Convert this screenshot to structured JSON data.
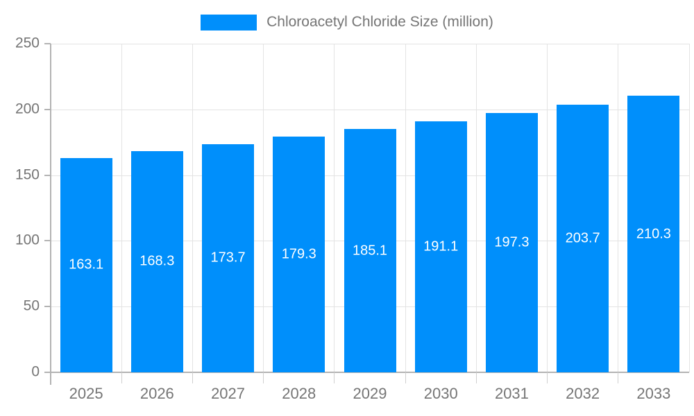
{
  "chart_data": {
    "type": "bar",
    "title": "Chloroacetyl Chloride Size (million)",
    "legend": {
      "label": "Chloroacetyl Chloride Size (million)",
      "position": "top"
    },
    "categories": [
      "2025",
      "2026",
      "2027",
      "2028",
      "2029",
      "2030",
      "2031",
      "2032",
      "2033"
    ],
    "values": [
      163.1,
      168.3,
      173.7,
      179.3,
      185.1,
      191.1,
      197.3,
      203.7,
      210.3
    ],
    "value_labels": [
      "163.1",
      "168.3",
      "173.7",
      "179.3",
      "185.1",
      "191.1",
      "197.3",
      "203.7",
      "210.3"
    ],
    "xlabel": "",
    "ylabel": "",
    "ylim": [
      0,
      250
    ],
    "yticks": [
      0,
      50,
      100,
      150,
      200,
      250
    ],
    "ytick_labels": [
      "0",
      "50",
      "100",
      "150",
      "200",
      "250"
    ],
    "grid": true,
    "colors": {
      "bar": "#008FFB",
      "axis_line": "#b3b3b3",
      "gridline": "#e3e3e3",
      "tick_label": "#757575",
      "bar_value_label": "#ffffff",
      "background": "#ffffff"
    }
  }
}
